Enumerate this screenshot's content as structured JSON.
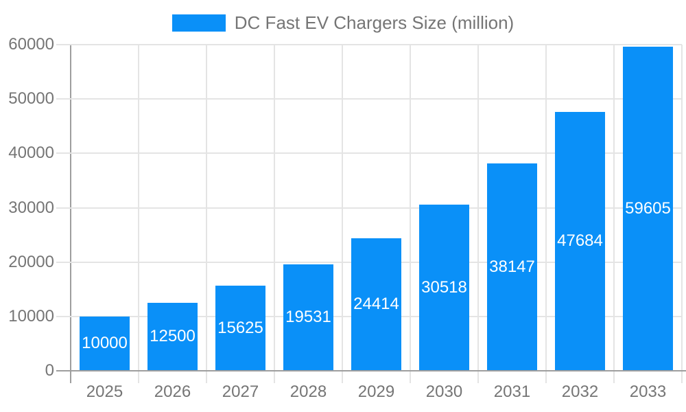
{
  "chart_data": {
    "type": "bar",
    "title": "DC Fast EV Chargers Size (million)",
    "legend_position": "top",
    "categories": [
      "2025",
      "2026",
      "2027",
      "2028",
      "2029",
      "2030",
      "2031",
      "2032",
      "2033"
    ],
    "values": [
      10000,
      12500,
      15625,
      19531,
      24414,
      30518,
      38147,
      47684,
      59605
    ],
    "xlabel": "",
    "ylabel": "",
    "ylim": [
      0,
      60000
    ],
    "yticks": [
      0,
      10000,
      20000,
      30000,
      40000,
      50000,
      60000
    ],
    "grid": true,
    "bar_value_labels": true
  },
  "colors": {
    "bar": "#0A90F8",
    "grid": "#E4E4E4",
    "axis": "#9E9E9E",
    "tick_label": "#757575",
    "value_label": "#FFFFFF",
    "background": "#FFFFFF"
  }
}
